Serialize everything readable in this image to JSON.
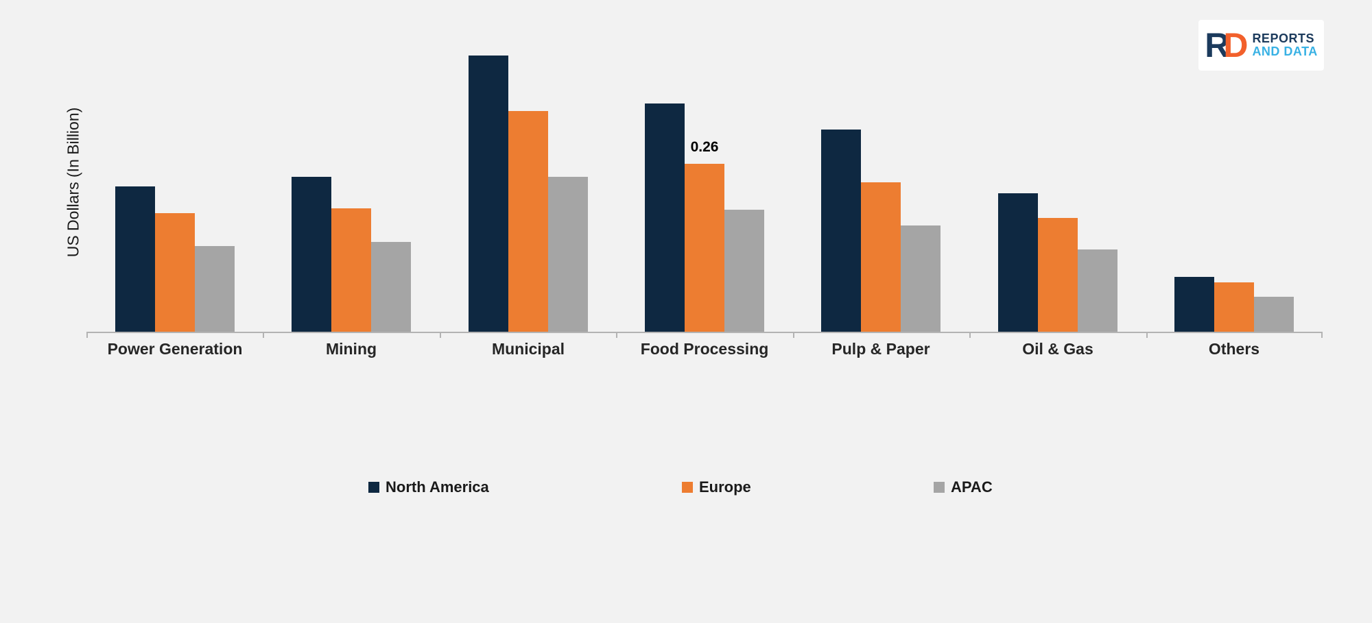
{
  "page": {
    "background": "#F2F2F2"
  },
  "logo": {
    "mark_r": "R",
    "mark_d": "D",
    "line1": "REPORTS",
    "line2": "AND DATA",
    "navy": "#1B3A5C",
    "orange": "#F2602B",
    "cyan": "#38B1E4"
  },
  "chart_data": {
    "type": "bar",
    "title": "",
    "xlabel": "",
    "ylabel": "US Dollars  (In Billion)",
    "categories": [
      "Power Generation",
      "Mining",
      "Municipal",
      "Food Processing",
      "Pulp & Paper",
      "Oil & Gas",
      "Others"
    ],
    "series": [
      {
        "name": "North America",
        "color": "#0E2841",
        "values": [
          0.225,
          0.24,
          0.428,
          0.353,
          0.313,
          0.214,
          0.085
        ]
      },
      {
        "name": "Europe",
        "color": "#ED7D31",
        "values": [
          0.184,
          0.191,
          0.342,
          0.26,
          0.231,
          0.176,
          0.076
        ]
      },
      {
        "name": "APAC",
        "color": "#A5A5A5",
        "values": [
          0.133,
          0.139,
          0.24,
          0.189,
          0.165,
          0.127,
          0.054
        ]
      }
    ],
    "annotations": [
      {
        "series": "Europe",
        "category": "Food Processing",
        "text": "0.26"
      }
    ],
    "ylim": [
      0,
      0.45
    ],
    "grid": false,
    "legend_position": "bottom",
    "axis_color": "#B3B3B3",
    "label_color": "#262626"
  }
}
